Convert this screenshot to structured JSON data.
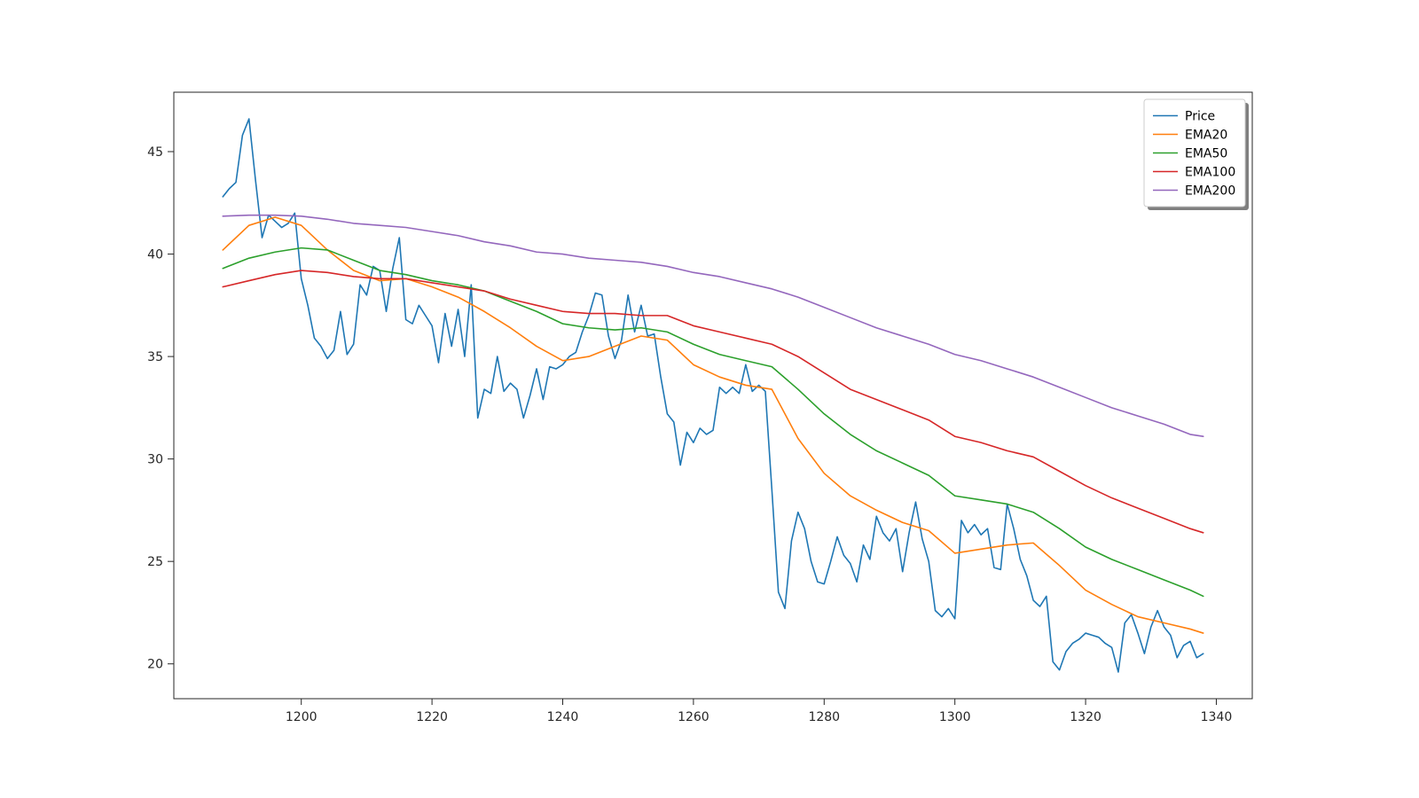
{
  "figure": {
    "background": "#ffffff",
    "spine_color": "#262626",
    "tick_label_color": "#262626",
    "legend_text_color": "#000000",
    "legend_border_color": "#cccccc",
    "legend_shadow_color": "#7f7f7f"
  },
  "chart_data": {
    "type": "line",
    "title": "",
    "xlabel": "",
    "ylabel": "",
    "grid": false,
    "xlim": [
      1180.5,
      1345.5
    ],
    "ylim": [
      18.3,
      47.9
    ],
    "x_ticks": [
      1200,
      1220,
      1240,
      1260,
      1280,
      1300,
      1320,
      1340
    ],
    "y_ticks": [
      20,
      25,
      30,
      35,
      40,
      45
    ],
    "legend": {
      "position": "upper right",
      "entries": [
        "Price",
        "EMA20",
        "EMA50",
        "EMA100",
        "EMA200"
      ]
    },
    "series": [
      {
        "name": "Price",
        "color": "#1f77b4",
        "x_start": 1188,
        "x_step": 1,
        "values": [
          42.8,
          43.2,
          43.5,
          45.8,
          46.6,
          43.6,
          40.8,
          41.9,
          41.6,
          41.3,
          41.5,
          42.0,
          38.8,
          37.5,
          35.9,
          35.5,
          34.9,
          35.3,
          37.2,
          35.1,
          35.6,
          38.5,
          38.0,
          39.4,
          39.2,
          37.2,
          39.3,
          40.8,
          36.8,
          36.6,
          37.5,
          37.0,
          36.5,
          34.7,
          37.1,
          35.5,
          37.3,
          35.0,
          38.5,
          32.0,
          33.4,
          33.2,
          35.0,
          33.3,
          33.7,
          33.4,
          32.0,
          33.1,
          34.4,
          32.9,
          34.5,
          34.4,
          34.6,
          35.0,
          35.2,
          36.2,
          37.0,
          38.1,
          38.0,
          36.0,
          34.9,
          35.8,
          38.0,
          36.2,
          37.5,
          36.0,
          36.1,
          34.0,
          32.2,
          31.8,
          29.7,
          31.3,
          30.8,
          31.5,
          31.2,
          31.4,
          33.5,
          33.2,
          33.5,
          33.2,
          34.6,
          33.3,
          33.6,
          33.3,
          28.5,
          23.5,
          22.7,
          26.0,
          27.4,
          26.6,
          25.0,
          24.0,
          23.9,
          25.0,
          26.2,
          25.3,
          24.9,
          24.0,
          25.8,
          25.1,
          27.2,
          26.4,
          26.0,
          26.6,
          24.5,
          26.4,
          27.9,
          26.1,
          25.0,
          22.6,
          22.3,
          22.7,
          22.2,
          27.0,
          26.4,
          26.8,
          26.3,
          26.6,
          24.7,
          24.6,
          27.8,
          26.6,
          25.1,
          24.3,
          23.1,
          22.8,
          23.3,
          20.1,
          19.7,
          20.6,
          21.0,
          21.2,
          21.5,
          21.4,
          21.3,
          21.0,
          20.8,
          19.6,
          22.0,
          22.4,
          21.5,
          20.5,
          21.8,
          22.6,
          21.8,
          21.4,
          20.3,
          20.9,
          21.1,
          20.3,
          20.5
        ]
      },
      {
        "name": "EMA20",
        "color": "#ff7f0e",
        "x": [
          1188,
          1192,
          1196,
          1200,
          1204,
          1208,
          1212,
          1216,
          1220,
          1224,
          1228,
          1232,
          1236,
          1240,
          1244,
          1248,
          1252,
          1256,
          1260,
          1264,
          1268,
          1272,
          1276,
          1280,
          1284,
          1288,
          1292,
          1296,
          1300,
          1304,
          1308,
          1312,
          1316,
          1320,
          1324,
          1328,
          1332,
          1336,
          1338
        ],
        "values": [
          40.2,
          41.4,
          41.8,
          41.4,
          40.2,
          39.2,
          38.7,
          38.8,
          38.4,
          37.9,
          37.2,
          36.4,
          35.5,
          34.8,
          35.0,
          35.5,
          36.0,
          35.8,
          34.6,
          34.0,
          33.6,
          33.4,
          31.0,
          29.3,
          28.2,
          27.5,
          26.9,
          26.5,
          25.4,
          25.6,
          25.8,
          25.9,
          24.8,
          23.6,
          22.9,
          22.3,
          22.0,
          21.7,
          21.5
        ]
      },
      {
        "name": "EMA50",
        "color": "#2ca02c",
        "x": [
          1188,
          1192,
          1196,
          1200,
          1204,
          1208,
          1212,
          1216,
          1220,
          1224,
          1228,
          1232,
          1236,
          1240,
          1244,
          1248,
          1252,
          1256,
          1260,
          1264,
          1268,
          1272,
          1276,
          1280,
          1284,
          1288,
          1292,
          1296,
          1300,
          1304,
          1308,
          1312,
          1316,
          1320,
          1324,
          1328,
          1332,
          1336,
          1338
        ],
        "values": [
          39.3,
          39.8,
          40.1,
          40.3,
          40.2,
          39.7,
          39.2,
          39.0,
          38.7,
          38.5,
          38.2,
          37.7,
          37.2,
          36.6,
          36.4,
          36.3,
          36.4,
          36.2,
          35.6,
          35.1,
          34.8,
          34.5,
          33.4,
          32.2,
          31.2,
          30.4,
          29.8,
          29.2,
          28.2,
          28.0,
          27.8,
          27.4,
          26.6,
          25.7,
          25.1,
          24.6,
          24.1,
          23.6,
          23.3
        ]
      },
      {
        "name": "EMA100",
        "color": "#d62728",
        "x": [
          1188,
          1192,
          1196,
          1200,
          1204,
          1208,
          1212,
          1216,
          1220,
          1224,
          1228,
          1232,
          1236,
          1240,
          1244,
          1248,
          1252,
          1256,
          1260,
          1264,
          1268,
          1272,
          1276,
          1280,
          1284,
          1288,
          1292,
          1296,
          1300,
          1304,
          1308,
          1312,
          1316,
          1320,
          1324,
          1328,
          1332,
          1336,
          1338
        ],
        "values": [
          38.4,
          38.7,
          39.0,
          39.2,
          39.1,
          38.9,
          38.8,
          38.8,
          38.6,
          38.4,
          38.2,
          37.8,
          37.5,
          37.2,
          37.1,
          37.1,
          37.0,
          37.0,
          36.5,
          36.2,
          35.9,
          35.6,
          35.0,
          34.2,
          33.4,
          32.9,
          32.4,
          31.9,
          31.1,
          30.8,
          30.4,
          30.1,
          29.4,
          28.7,
          28.1,
          27.6,
          27.1,
          26.6,
          26.4
        ]
      },
      {
        "name": "EMA200",
        "color": "#9467bd",
        "x": [
          1188,
          1192,
          1196,
          1200,
          1204,
          1208,
          1212,
          1216,
          1220,
          1224,
          1228,
          1232,
          1236,
          1240,
          1244,
          1248,
          1252,
          1256,
          1260,
          1264,
          1268,
          1272,
          1276,
          1280,
          1284,
          1288,
          1292,
          1296,
          1300,
          1304,
          1308,
          1312,
          1316,
          1320,
          1324,
          1328,
          1332,
          1336,
          1338
        ],
        "values": [
          41.85,
          41.9,
          41.9,
          41.85,
          41.7,
          41.5,
          41.4,
          41.3,
          41.1,
          40.9,
          40.6,
          40.4,
          40.1,
          40.0,
          39.8,
          39.7,
          39.6,
          39.4,
          39.1,
          38.9,
          38.6,
          38.3,
          37.9,
          37.4,
          36.9,
          36.4,
          36.0,
          35.6,
          35.1,
          34.8,
          34.4,
          34.0,
          33.5,
          33.0,
          32.5,
          32.1,
          31.7,
          31.2,
          31.1
        ]
      }
    ]
  }
}
